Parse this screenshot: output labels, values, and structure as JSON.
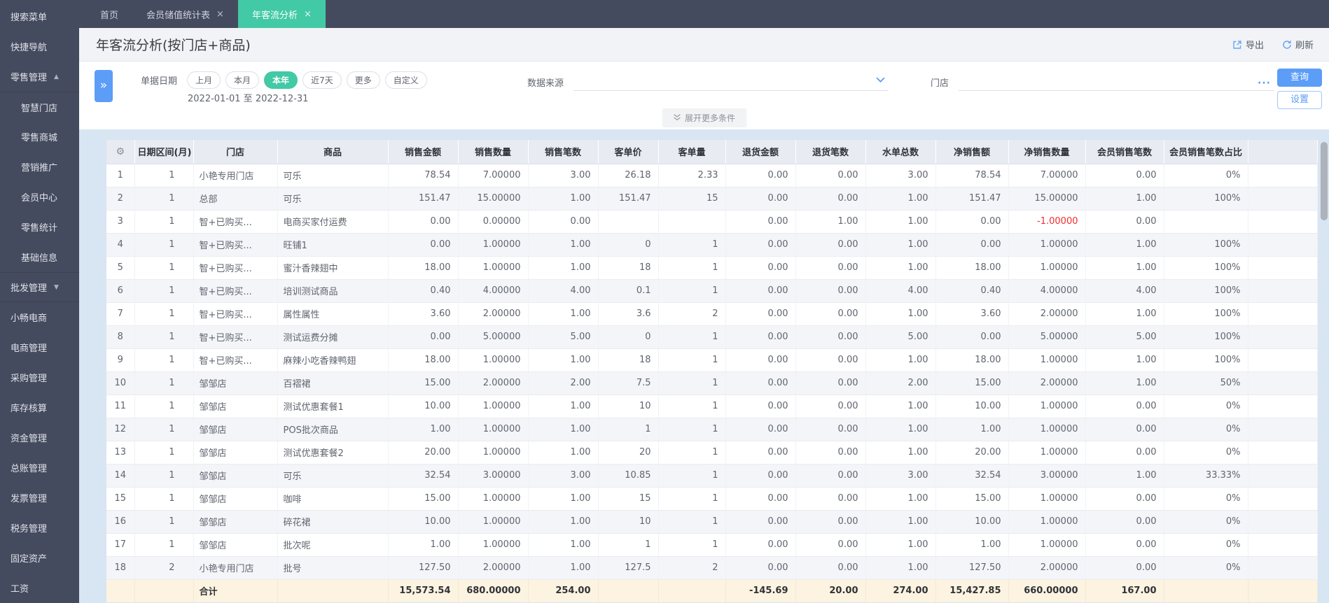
{
  "colors": {
    "accent_green": "#42c9a5",
    "accent_blue": "#5c9df8",
    "sidebar_bg": "#454b5e",
    "negative_red": "#f02d2d",
    "footer_bg": "#fcf3e1",
    "header_bg": "#e9ebf2"
  },
  "icons": {
    "gear": "⚙",
    "collapse": "»",
    "close": "×",
    "ellipsis": "···",
    "caret_up": "▲",
    "caret_down": "▼"
  },
  "sidebar": {
    "items": [
      {
        "label": "搜索菜单",
        "level": "top"
      },
      {
        "label": "快捷导航",
        "level": "top"
      },
      {
        "label": "零售管理",
        "level": "top",
        "arrow": "up"
      },
      {
        "label": "智慧门店",
        "level": "sub",
        "sep_top": true
      },
      {
        "label": "零售商城",
        "level": "sub"
      },
      {
        "label": "营销推广",
        "level": "sub"
      },
      {
        "label": "会员中心",
        "level": "sub"
      },
      {
        "label": "零售统计",
        "level": "sub"
      },
      {
        "label": "基础信息",
        "level": "sub"
      },
      {
        "label": "批发管理",
        "level": "top",
        "arrow": "down",
        "sep_top": true,
        "sep_bottom": true
      },
      {
        "label": "小畅电商",
        "level": "top"
      },
      {
        "label": "电商管理",
        "level": "top"
      },
      {
        "label": "采购管理",
        "level": "top"
      },
      {
        "label": "库存核算",
        "level": "top"
      },
      {
        "label": "资金管理",
        "level": "top"
      },
      {
        "label": "总账管理",
        "level": "top"
      },
      {
        "label": "发票管理",
        "level": "top"
      },
      {
        "label": "税务管理",
        "level": "top"
      },
      {
        "label": "固定资产",
        "level": "top"
      },
      {
        "label": "工资",
        "level": "top"
      }
    ]
  },
  "tabs": [
    {
      "label": "首页",
      "active": false,
      "closable": false
    },
    {
      "label": "会员储值统计表",
      "active": false,
      "closable": true
    },
    {
      "label": "年客流分析",
      "active": true,
      "closable": true
    }
  ],
  "page": {
    "title": "年客流分析(按门店+商品)",
    "export_label": "导出",
    "refresh_label": "刷新"
  },
  "filters": {
    "date_label": "单据日期",
    "pills": [
      {
        "label": "上月",
        "active": false
      },
      {
        "label": "本月",
        "active": false
      },
      {
        "label": "本年",
        "active": true
      },
      {
        "label": "近7天",
        "active": false
      },
      {
        "label": "更多",
        "active": false
      },
      {
        "label": "自定义",
        "active": false
      }
    ],
    "date_range": "2022-01-01 至 2022-12-31",
    "source_label": "数据来源",
    "source_value": "",
    "store_label": "门店",
    "store_value": "",
    "query_label": "查询",
    "settings_label": "设置",
    "expand_more_label": "展开更多条件"
  },
  "table": {
    "headers": [
      "",
      "日期区间(月)",
      "门店",
      "商品",
      "销售金额",
      "销售数量",
      "销售笔数",
      "客单价",
      "客单量",
      "退货金额",
      "退货笔数",
      "水单总数",
      "净销售额",
      "净销售数量",
      "会员销售笔数",
      "会员销售笔数占比"
    ],
    "rows": [
      [
        "1",
        "1",
        "小艳专用门店",
        "可乐",
        "78.54",
        "7.00000",
        "3.00",
        "26.18",
        "2.33",
        "0.00",
        "0.00",
        "3.00",
        "78.54",
        "7.00000",
        "0.00",
        "0%"
      ],
      [
        "2",
        "1",
        "总部",
        "可乐",
        "151.47",
        "15.00000",
        "1.00",
        "151.47",
        "15",
        "0.00",
        "0.00",
        "1.00",
        "151.47",
        "15.00000",
        "1.00",
        "100%"
      ],
      [
        "3",
        "1",
        "智+已购买...",
        "电商买家付运费",
        "0.00",
        "0.00000",
        "0.00",
        "",
        "",
        "0.00",
        "1.00",
        "1.00",
        "0.00",
        "-1.00000",
        "0.00",
        ""
      ],
      [
        "4",
        "1",
        "智+已购买...",
        "旺铺1",
        "0.00",
        "1.00000",
        "1.00",
        "0",
        "1",
        "0.00",
        "0.00",
        "1.00",
        "0.00",
        "1.00000",
        "1.00",
        "100%"
      ],
      [
        "5",
        "1",
        "智+已购买...",
        "蜜汁香辣翅中",
        "18.00",
        "1.00000",
        "1.00",
        "18",
        "1",
        "0.00",
        "0.00",
        "1.00",
        "18.00",
        "1.00000",
        "1.00",
        "100%"
      ],
      [
        "6",
        "1",
        "智+已购买...",
        "培训测试商品",
        "0.40",
        "4.00000",
        "4.00",
        "0.1",
        "1",
        "0.00",
        "0.00",
        "4.00",
        "0.40",
        "4.00000",
        "4.00",
        "100%"
      ],
      [
        "7",
        "1",
        "智+已购买...",
        "属性属性",
        "3.60",
        "2.00000",
        "1.00",
        "3.6",
        "2",
        "0.00",
        "0.00",
        "1.00",
        "3.60",
        "2.00000",
        "1.00",
        "100%"
      ],
      [
        "8",
        "1",
        "智+已购买...",
        "测试运费分摊",
        "0.00",
        "5.00000",
        "5.00",
        "0",
        "1",
        "0.00",
        "0.00",
        "5.00",
        "0.00",
        "5.00000",
        "5.00",
        "100%"
      ],
      [
        "9",
        "1",
        "智+已购买...",
        "麻辣小吃香辣鸭翅",
        "18.00",
        "1.00000",
        "1.00",
        "18",
        "1",
        "0.00",
        "0.00",
        "1.00",
        "18.00",
        "1.00000",
        "1.00",
        "100%"
      ],
      [
        "10",
        "1",
        "邹邹店",
        "百褶裙",
        "15.00",
        "2.00000",
        "2.00",
        "7.5",
        "1",
        "0.00",
        "0.00",
        "2.00",
        "15.00",
        "2.00000",
        "1.00",
        "50%"
      ],
      [
        "11",
        "1",
        "邹邹店",
        "测试优惠套餐1",
        "10.00",
        "1.00000",
        "1.00",
        "10",
        "1",
        "0.00",
        "0.00",
        "1.00",
        "10.00",
        "1.00000",
        "0.00",
        "0%"
      ],
      [
        "12",
        "1",
        "邹邹店",
        "POS批次商品",
        "1.00",
        "1.00000",
        "1.00",
        "1",
        "1",
        "0.00",
        "0.00",
        "1.00",
        "1.00",
        "1.00000",
        "0.00",
        "0%"
      ],
      [
        "13",
        "1",
        "邹邹店",
        "测试优惠套餐2",
        "20.00",
        "1.00000",
        "1.00",
        "20",
        "1",
        "0.00",
        "0.00",
        "1.00",
        "20.00",
        "1.00000",
        "0.00",
        "0%"
      ],
      [
        "14",
        "1",
        "邹邹店",
        "可乐",
        "32.54",
        "3.00000",
        "3.00",
        "10.85",
        "1",
        "0.00",
        "0.00",
        "3.00",
        "32.54",
        "3.00000",
        "1.00",
        "33.33%"
      ],
      [
        "15",
        "1",
        "邹邹店",
        "咖啡",
        "15.00",
        "1.00000",
        "1.00",
        "15",
        "1",
        "0.00",
        "0.00",
        "1.00",
        "15.00",
        "1.00000",
        "0.00",
        "0%"
      ],
      [
        "16",
        "1",
        "邹邹店",
        "碎花裙",
        "10.00",
        "1.00000",
        "1.00",
        "10",
        "1",
        "0.00",
        "0.00",
        "1.00",
        "10.00",
        "1.00000",
        "0.00",
        "0%"
      ],
      [
        "17",
        "1",
        "邹邹店",
        "批次呢",
        "1.00",
        "1.00000",
        "1.00",
        "1",
        "1",
        "0.00",
        "0.00",
        "1.00",
        "1.00",
        "1.00000",
        "0.00",
        "0%"
      ],
      [
        "18",
        "2",
        "小艳专用门店",
        "批号",
        "127.50",
        "2.00000",
        "1.00",
        "127.5",
        "2",
        "0.00",
        "0.00",
        "1.00",
        "127.50",
        "2.00000",
        "0.00",
        "0%"
      ]
    ],
    "footer": [
      "",
      "",
      "合计",
      "",
      "15,573.54",
      "680.00000",
      "254.00",
      "",
      "",
      "-145.69",
      "20.00",
      "274.00",
      "15,427.85",
      "660.00000",
      "167.00",
      ""
    ]
  }
}
